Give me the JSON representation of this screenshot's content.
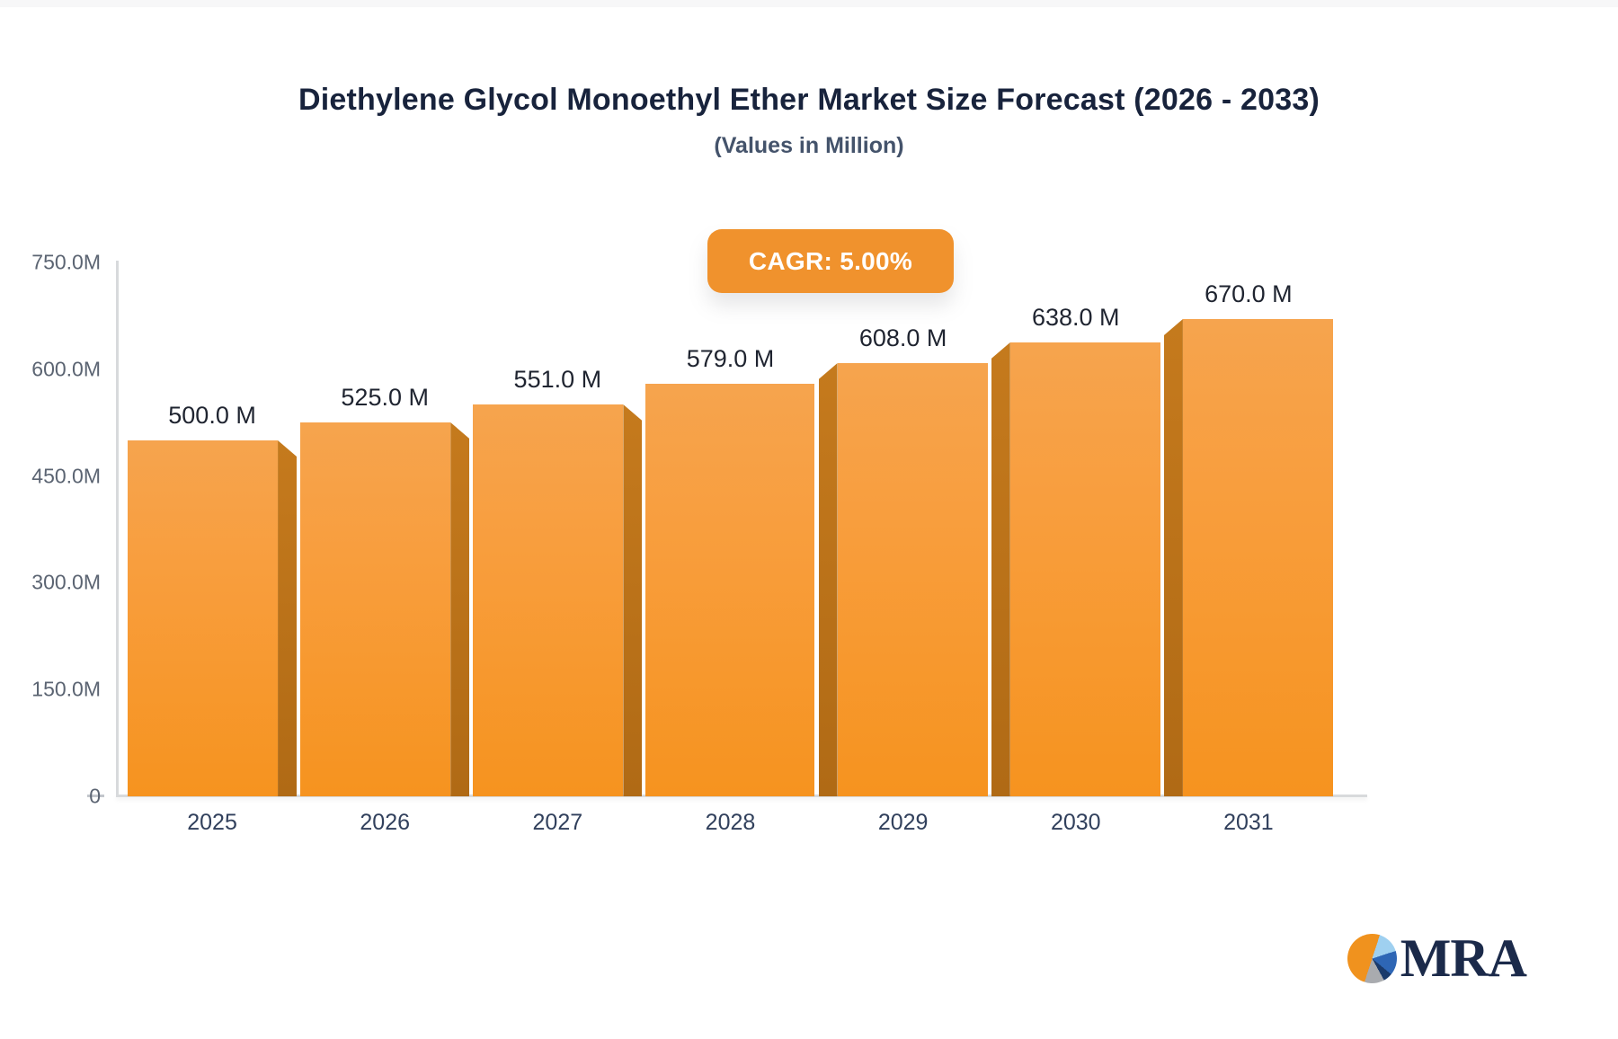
{
  "title": "Diethylene Glycol Monoethyl Ether Market Size Forecast (2026 - 2033)",
  "subtitle": "(Values in Million)",
  "badge": {
    "label": "CAGR: 5.00%"
  },
  "chart_data": {
    "type": "bar",
    "categories": [
      "2025",
      "2026",
      "2027",
      "2028",
      "2029",
      "2030",
      "2031"
    ],
    "values": [
      500,
      525,
      551,
      579,
      608,
      638,
      670
    ],
    "value_labels": [
      "500.0 M",
      "525.0 M",
      "551.0 M",
      "579.0 M",
      "608.0 M",
      "638.0 M",
      "670.0 M"
    ],
    "y_ticks": [
      "750.0M",
      "600.0M",
      "450.0M",
      "300.0M",
      "150.0M",
      "0"
    ],
    "ylim": [
      0,
      750
    ],
    "xlabel": "",
    "ylabel": "",
    "grid": false,
    "legend": false,
    "bar_style": "3d-perspective",
    "bar_face_color_top": "#f6a44e",
    "bar_face_color_bottom": "#f6931f",
    "bar_side_color": "#b9701b"
  },
  "colors": {
    "accent_orange": "#f0922d",
    "title_text": "#18233c",
    "subtitle_text": "#44536b",
    "axis_line": "#d8dadc",
    "y_tick_text": "#5b6472",
    "x_tick_text": "#31405c",
    "value_label_text": "#1f2430",
    "logo_navy": "#1b2a4a"
  },
  "logo": {
    "text": "MRA",
    "icon": "pie-chart"
  }
}
